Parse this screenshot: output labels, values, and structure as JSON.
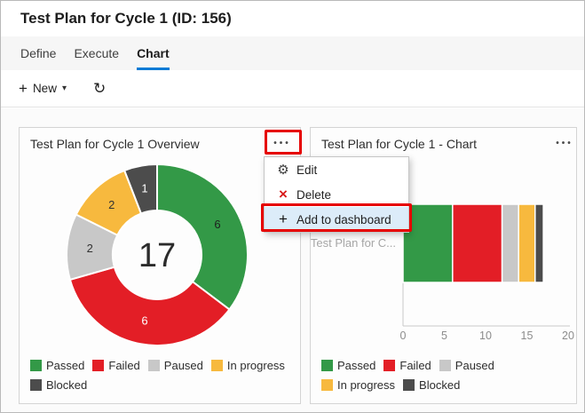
{
  "page": {
    "title": "Test Plan for Cycle 1 (ID: 156)"
  },
  "tabs": [
    {
      "label": "Define",
      "active": false
    },
    {
      "label": "Execute",
      "active": false
    },
    {
      "label": "Chart",
      "active": true
    }
  ],
  "toolbar": {
    "new_label": "New"
  },
  "icons": {
    "plus": "+",
    "chevron_down": "▾",
    "refresh": "↻",
    "ellipsis": "•••",
    "gear": "⚙",
    "delete_x": "×",
    "add_plus": "+"
  },
  "context_menu": {
    "items": [
      {
        "label": "Edit",
        "highlighted": false
      },
      {
        "label": "Delete",
        "highlighted": false
      },
      {
        "label": "Add to dashboard",
        "highlighted": true
      }
    ],
    "highlight_color": "#dcecf9"
  },
  "colors": {
    "accent_blue": "#0c7bd6",
    "annotation_red": "#e60000"
  },
  "chart_data": [
    {
      "type": "pie",
      "variant": "donut",
      "widget_title": "Test Plan for Cycle 1 Overview",
      "total_label": "17",
      "legend_position": "bottom",
      "series": [
        {
          "name": "Passed",
          "value": 6,
          "color": "#339947",
          "label_color": "#1e1e1e"
        },
        {
          "name": "Failed",
          "value": 6,
          "color": "#e31e26",
          "label_color": "#ffffff"
        },
        {
          "name": "Paused",
          "value": 2,
          "color": "#c8c8c8",
          "label_color": "#333333"
        },
        {
          "name": "In progress",
          "value": 2,
          "color": "#f7b93e",
          "label_color": "#333333"
        },
        {
          "name": "Blocked",
          "value": 1,
          "color": "#4c4c4c",
          "label_color": "#ffffff"
        }
      ]
    },
    {
      "type": "bar",
      "variant": "horizontal-stacked",
      "widget_title": "Test Plan for Cycle 1 - Chart",
      "category_label": "Test Plan for C...",
      "xlim": [
        0,
        20
      ],
      "x_ticks": [
        0,
        5,
        10,
        15,
        20
      ],
      "legend_position": "bottom",
      "series": [
        {
          "name": "Passed",
          "value": 6,
          "color": "#339947"
        },
        {
          "name": "Failed",
          "value": 6,
          "color": "#e31e26"
        },
        {
          "name": "Paused",
          "value": 2,
          "color": "#c8c8c8"
        },
        {
          "name": "In progress",
          "value": 2,
          "color": "#f7b93e"
        },
        {
          "name": "Blocked",
          "value": 1,
          "color": "#4c4c4c"
        }
      ]
    }
  ]
}
